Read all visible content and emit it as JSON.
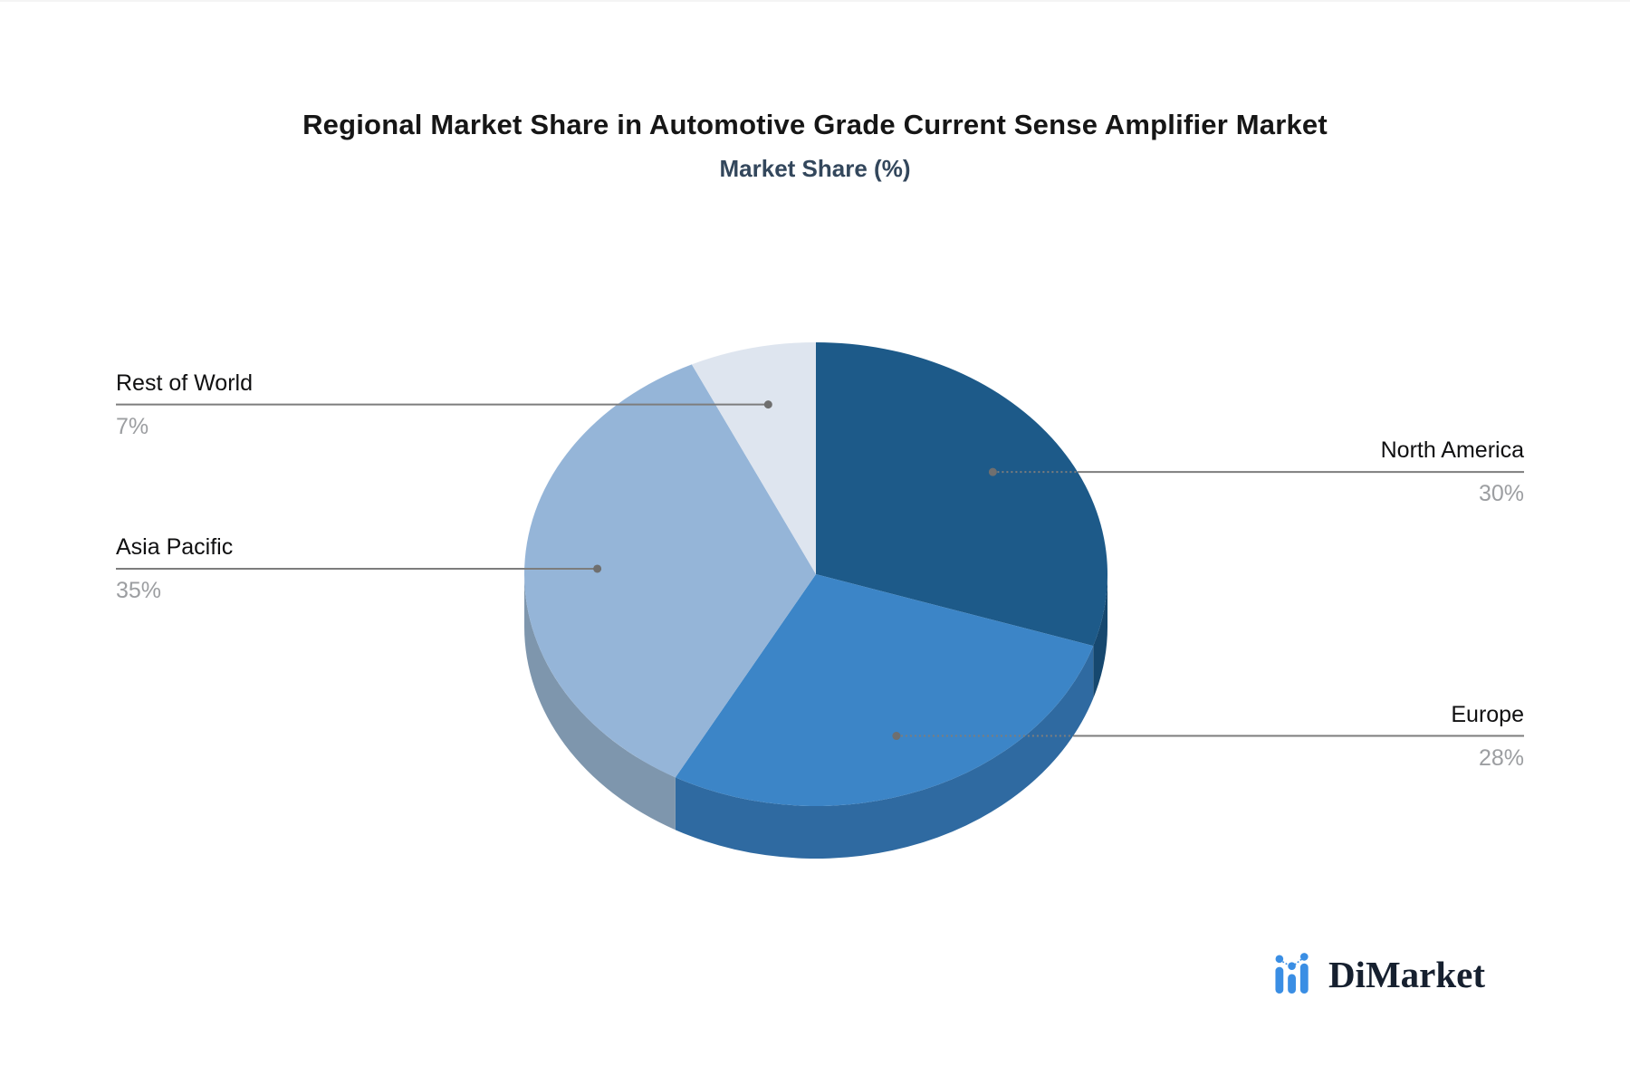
{
  "page": {
    "title": "Regional Market Share in Automotive Grade Current Sense Amplifier Market",
    "subtitle": "Market Share (%)"
  },
  "chart_data": {
    "type": "pie",
    "style": "pie3d",
    "title": "Regional Market Share in Automotive Grade Current Sense Amplifier Market",
    "subtitle": "Market Share (%)",
    "unit": "%",
    "start_angle_deg": 0,
    "direction": "clockwise",
    "slices": [
      {
        "label": "North America",
        "value": 30,
        "display": "30%",
        "color": "#1d5a89",
        "side_color": "#16486f",
        "label_side": "right"
      },
      {
        "label": "Europe",
        "value": 28,
        "display": "28%",
        "color": "#3c85c7",
        "side_color": "#2f6aa1",
        "label_side": "right"
      },
      {
        "label": "Asia Pacific",
        "value": 35,
        "display": "35%",
        "color": "#95b5d8",
        "side_color": "#7e96ad",
        "label_side": "left"
      },
      {
        "label": "Rest of World",
        "value": 7,
        "display": "7%",
        "color": "#dee5ef",
        "side_color": "#c3cedd",
        "label_side": "left"
      }
    ],
    "leader_line_color": "#7d7d7d",
    "label_color": "#101011",
    "value_color": "#9c9ea1",
    "legend": "none"
  },
  "branding": {
    "logo_text": "DiMarket",
    "logo_icon": "bar-chart-trend-icon",
    "logo_icon_color": "#3a8ee4",
    "logo_text_color": "#16202f"
  }
}
